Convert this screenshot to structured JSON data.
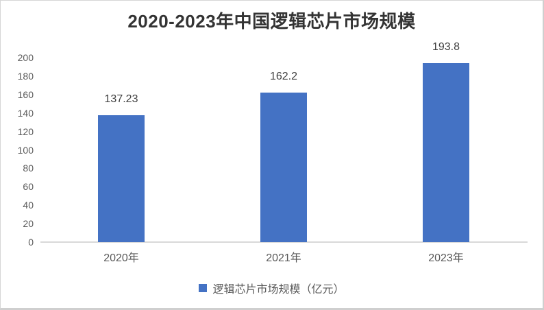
{
  "chart_data": {
    "type": "bar",
    "title": "2020-2023年中国逻辑芯片市场规模",
    "categories": [
      "2020年",
      "2021年",
      "2023年"
    ],
    "values": [
      137.23,
      162.2,
      193.8
    ],
    "value_labels": [
      "137.23",
      "162.2",
      "193.8"
    ],
    "series_name": "逻辑芯片市场规模（亿元）",
    "xlabel": "",
    "ylabel": "",
    "ylim": [
      0,
      200
    ],
    "yticks": [
      0,
      20,
      40,
      60,
      80,
      100,
      120,
      140,
      160,
      180,
      200
    ],
    "grid": false,
    "legend_position": "bottom"
  },
  "colors": {
    "bar": "#4472C4",
    "title_text": "#333333",
    "axis_text": "#595959",
    "value_label_text": "#404040",
    "axis_line": "#d9d9d9",
    "frame_border": "#d6d6d6",
    "background": "#ffffff"
  }
}
